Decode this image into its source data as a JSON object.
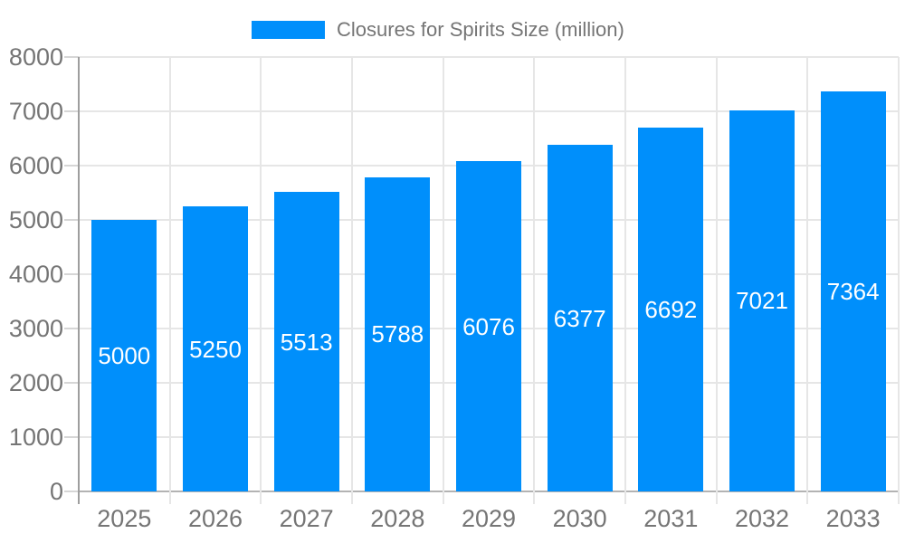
{
  "legend": {
    "series_label": "Closures for Spirits Size (million)"
  },
  "colors": {
    "bar": "#008FFB",
    "gridline": "#e6e6e6",
    "zero_line": "#b3b3b3",
    "axis_line": "#9e9e9e",
    "tick": "#d6d6d6",
    "axis_text": "#757575",
    "bar_label_text": "#ffffff"
  },
  "chart_data": {
    "type": "bar",
    "title": "Closures for Spirits Size (million)",
    "categories": [
      "2025",
      "2026",
      "2027",
      "2028",
      "2029",
      "2030",
      "2031",
      "2032",
      "2033"
    ],
    "values": [
      5000,
      5250,
      5513,
      5788,
      6076,
      6377,
      6692,
      7021,
      7364
    ],
    "series": [
      {
        "name": "Closures for Spirits Size (million)",
        "values": [
          5000,
          5250,
          5513,
          5788,
          6076,
          6377,
          6692,
          7021,
          7364
        ]
      }
    ],
    "xlabel": "",
    "ylabel": "",
    "ylim": [
      0,
      8000
    ],
    "ytick_step": 1000,
    "ytick_labels": [
      "0",
      "1000",
      "2000",
      "3000",
      "4000",
      "5000",
      "6000",
      "7000",
      "8000"
    ],
    "grid": true,
    "legend_position": "top",
    "bar_label_position": "inside-middle"
  }
}
